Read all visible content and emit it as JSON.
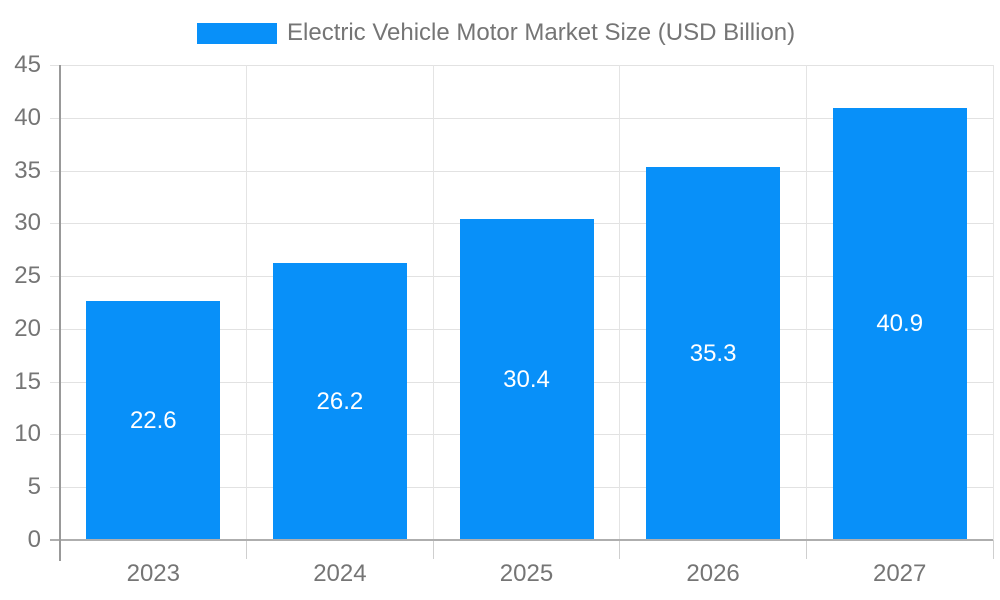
{
  "legend": {
    "label": "Electric Vehicle Motor Market Size (USD Billion)"
  },
  "chart_data": {
    "type": "bar",
    "title": "Electric Vehicle Motor Market Size (USD Billion)",
    "categories": [
      "2023",
      "2024",
      "2025",
      "2026",
      "2027"
    ],
    "values": [
      22.6,
      26.2,
      30.4,
      35.3,
      40.9
    ],
    "series": [
      {
        "name": "Electric Vehicle Motor Market Size (USD Billion)",
        "values": [
          22.6,
          26.2,
          30.4,
          35.3,
          40.9
        ]
      }
    ],
    "xlabel": "",
    "ylabel": "",
    "ylim": [
      0,
      45
    ],
    "yticks": [
      0,
      5,
      10,
      15,
      20,
      25,
      30,
      35,
      40,
      45
    ],
    "grid": "both",
    "legend_position": "top-center",
    "bar_color": "#0890F9",
    "data_label_color": "#FFFFFF",
    "axis_text_color": "#757575",
    "gridline_color": "#E2E2E2",
    "axis_line_color": "#999999",
    "background_color": "#FFFFFF"
  }
}
